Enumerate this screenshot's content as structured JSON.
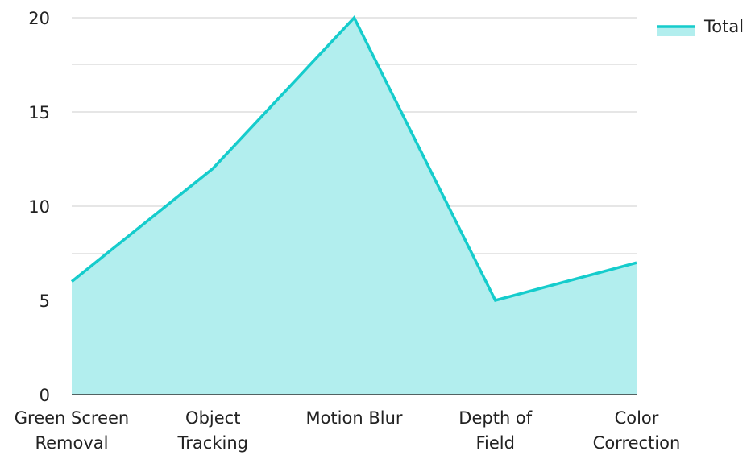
{
  "chart_data": {
    "type": "area",
    "categories": [
      [
        "Green Screen",
        "Removal"
      ],
      [
        "Object",
        "Tracking"
      ],
      [
        "Motion Blur"
      ],
      [
        "Depth of",
        "Field"
      ],
      [
        "Color",
        "Correction"
      ]
    ],
    "series": [
      {
        "name": "Total",
        "values": [
          6,
          12,
          20,
          5,
          7
        ]
      }
    ],
    "ylim": [
      0,
      20
    ],
    "yticks": [
      "0",
      "5",
      "10",
      "15",
      "20"
    ],
    "grid": true,
    "legend_position": "top-right",
    "colors": {
      "line": "#15cccc",
      "fill": "#b2eeee",
      "grid_major": "#cccccc",
      "grid_minor": "#e6e6e6",
      "axis": "#333333"
    }
  }
}
